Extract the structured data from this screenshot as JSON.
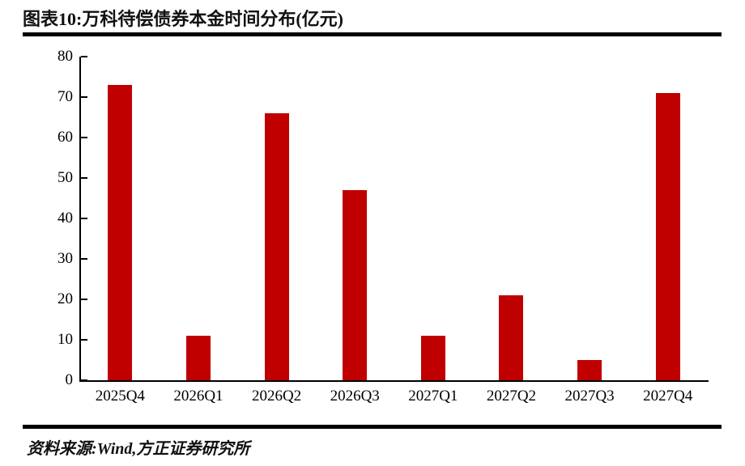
{
  "header": {
    "title": "图表10:万科待偿债券本金时间分布(亿元)"
  },
  "chart_data": {
    "type": "bar",
    "title": "万科待偿债券本金时间分布(亿元)",
    "categories": [
      "2025Q4",
      "2026Q1",
      "2026Q2",
      "2026Q3",
      "2027Q1",
      "2027Q2",
      "2027Q3",
      "2027Q4"
    ],
    "values": [
      73,
      11,
      66,
      47,
      11,
      21,
      5,
      71
    ],
    "xlabel": "",
    "ylabel": "",
    "ylim": [
      0,
      80
    ],
    "yticks": [
      0,
      10,
      20,
      30,
      40,
      50,
      60,
      70,
      80
    ],
    "grid": false,
    "legend": "none",
    "bar_color": "#c00000",
    "axis_color": "#000000"
  },
  "footer": {
    "source": "资料来源:Wind,方正证券研究所"
  }
}
